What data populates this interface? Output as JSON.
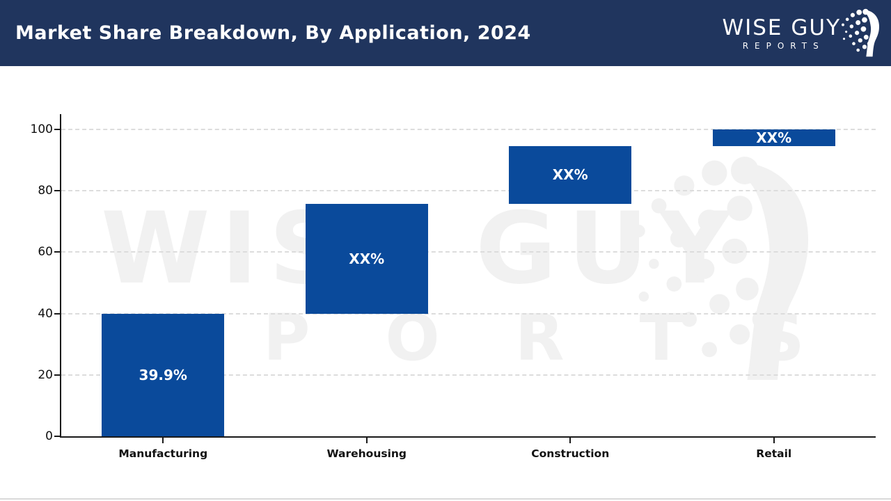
{
  "header": {
    "title": "Market Share Breakdown, By Application, 2024",
    "bg_color": "#20355E",
    "logo": {
      "line1": "WISE GUY",
      "line2": "REPORTS"
    }
  },
  "watermark": {
    "line1": "WISE GUY",
    "line2": "P O R T S"
  },
  "chart_data": {
    "type": "bar",
    "subtype": "waterfall",
    "title": "Market Share Breakdown, By Application, 2024",
    "categories": [
      "Manufacturing",
      "Warehousing",
      "Construction",
      "Retail"
    ],
    "segments": [
      {
        "category": "Manufacturing",
        "start": 0,
        "end": 39.9,
        "label": "39.9%"
      },
      {
        "category": "Warehousing",
        "start": 39.9,
        "end": 75.7,
        "label": "XX%"
      },
      {
        "category": "Construction",
        "start": 75.7,
        "end": 94.6,
        "label": "XX%"
      },
      {
        "category": "Retail",
        "start": 94.6,
        "end": 100,
        "label": "XX%"
      }
    ],
    "y_ticks": [
      0,
      20,
      40,
      60,
      80,
      100
    ],
    "ylim": [
      0,
      105
    ],
    "grid": "horizontal-dashed",
    "legend": "none",
    "bar_color": "#0A4A9B",
    "label_color": "#FFFFFF",
    "axis_color": "#1a1a1a",
    "grid_color": "#DCDCDC"
  }
}
